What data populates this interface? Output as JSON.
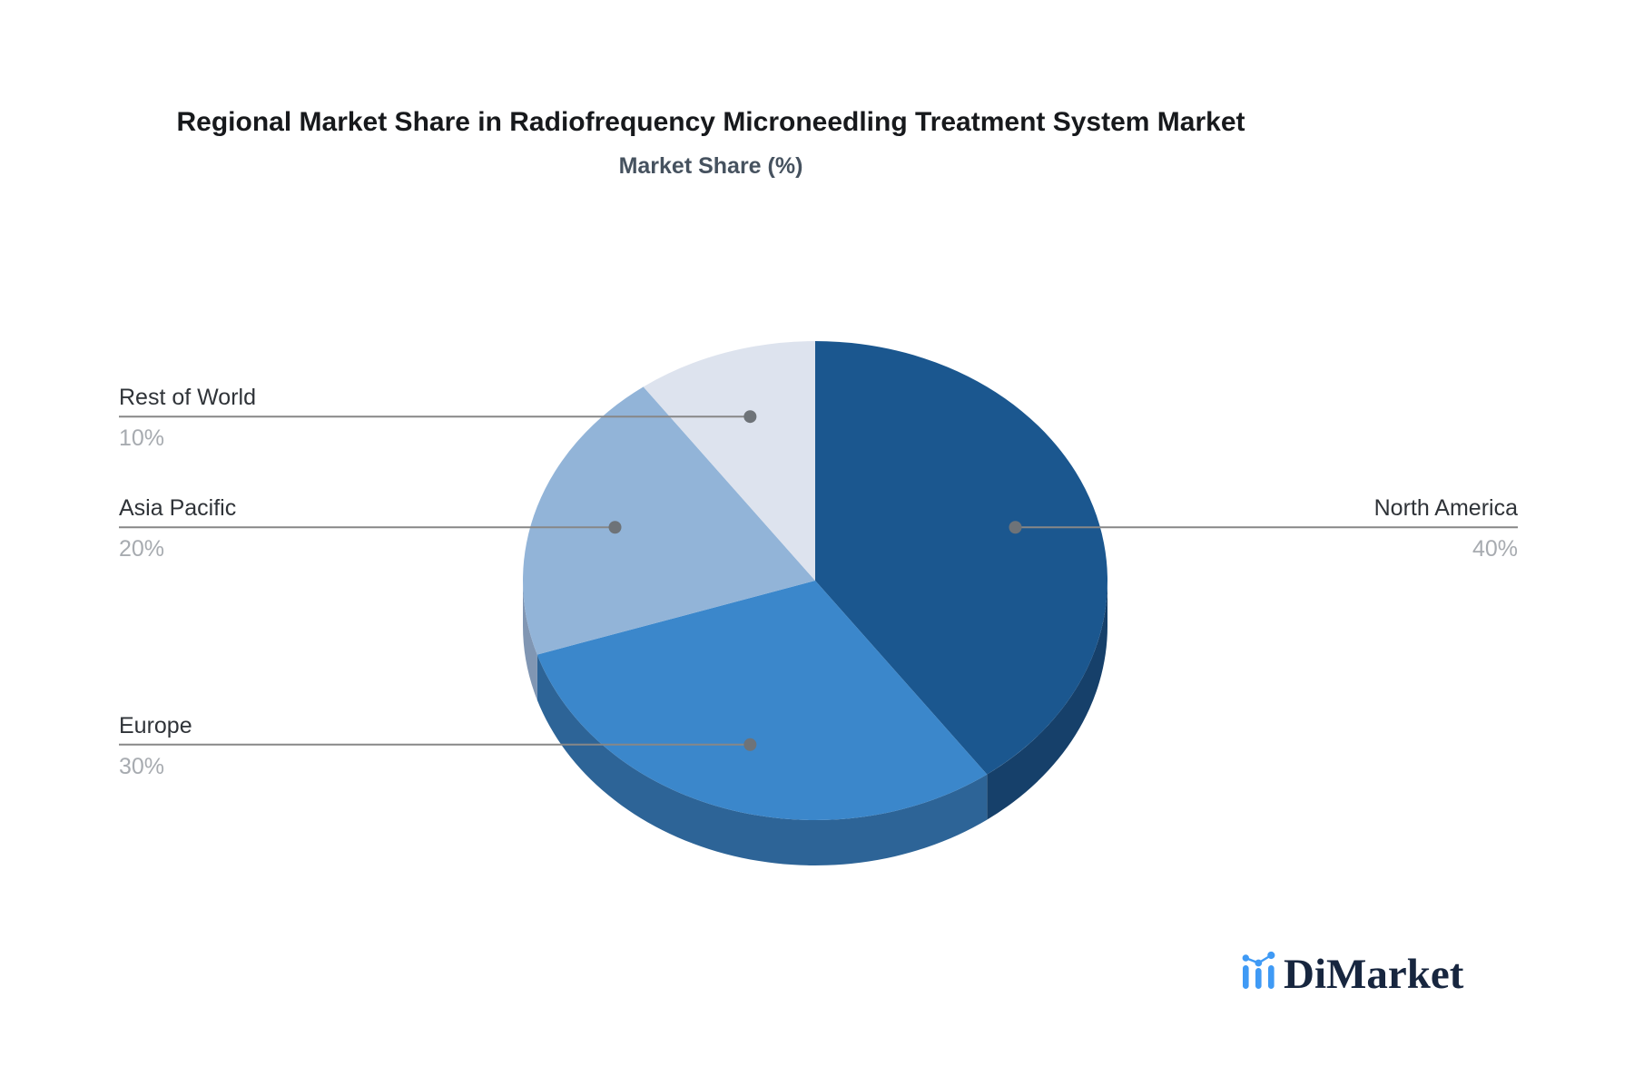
{
  "title": "Regional Market Share in Radiofrequency Microneedling Treatment System Market",
  "subtitle": "Market Share (%)",
  "brand": {
    "name": "DiMarket",
    "icon": "bar-chart-logo-icon",
    "text_color": "#17263f",
    "icon_color": "#3f9af5"
  },
  "chart_data": {
    "type": "pie",
    "title": "Regional Market Share in Radiofrequency Microneedling Treatment System Market",
    "subtitle": "Market Share (%)",
    "unit": "%",
    "style": "3d-pie",
    "start_angle_deg": 0,
    "direction": "clockwise",
    "slices": [
      {
        "label": "North America",
        "value": 40,
        "pct_label": "40%",
        "color": "#1b578f",
        "side_color": "#16406a",
        "label_side": "right"
      },
      {
        "label": "Europe",
        "value": 30,
        "pct_label": "30%",
        "color": "#3b87cb",
        "side_color": "#2d6497",
        "label_side": "left"
      },
      {
        "label": "Asia Pacific",
        "value": 20,
        "pct_label": "20%",
        "color": "#92b4d8",
        "side_color": "#8096b3",
        "label_side": "left"
      },
      {
        "label": "Rest of World",
        "value": 10,
        "pct_label": "10%",
        "color": "#dde3ee",
        "side_color": "#c3cbda",
        "label_side": "left"
      }
    ],
    "labels": {
      "name_color": "#2f3338",
      "pct_color": "#a7abb0",
      "line_color": "#878787",
      "dot_color": "#6e7378"
    }
  }
}
